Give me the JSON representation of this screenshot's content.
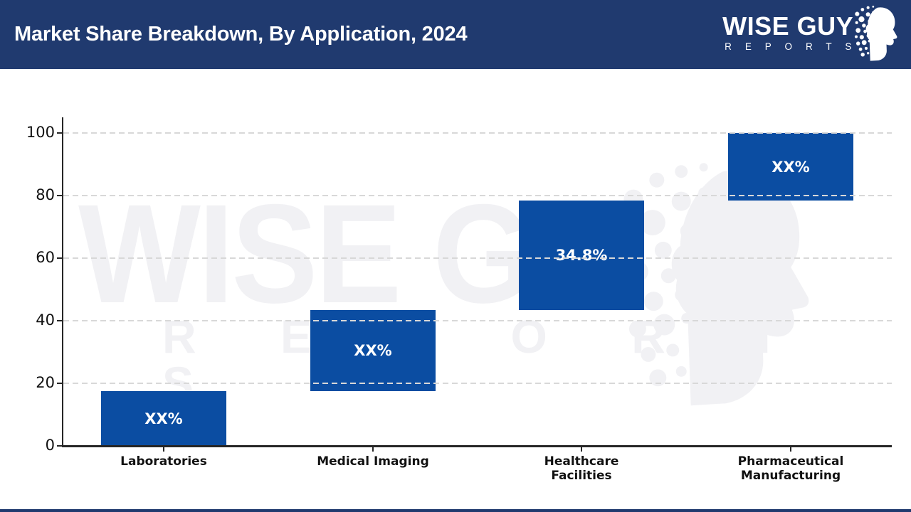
{
  "header": {
    "title": "Market Share Breakdown, By Application, 2024",
    "bg_color": "#203a6f",
    "logo": {
      "brand": "WISE GUY",
      "reports": "R E P O R T S",
      "mark_icon": "dotted-face-profile"
    }
  },
  "watermark": {
    "brand": "WISE GU",
    "reports": "R E P O R T S",
    "mark_icon": "dotted-face-profile",
    "color": "#f1f1f4"
  },
  "chart_data": {
    "type": "bar",
    "subtype": "floating-waterfall",
    "title": "Market Share Breakdown, By Application, 2024",
    "categories": [
      "Laboratories",
      "Medical Imaging",
      "Healthcare Facilities",
      "Pharmaceutical Manufacturing"
    ],
    "bars": [
      {
        "category": "Laboratories",
        "start": 0,
        "end": 17.5,
        "value": 17.5,
        "label": "XX%"
      },
      {
        "category": "Medical Imaging",
        "start": 17.5,
        "end": 43.5,
        "value": 26.0,
        "label": "XX%"
      },
      {
        "category": "Healthcare Facilities",
        "start": 43.5,
        "end": 78.3,
        "value": 34.8,
        "label": "34.8%"
      },
      {
        "category": "Pharmaceutical Manufacturing",
        "start": 78.3,
        "end": 100,
        "value": 21.7,
        "label": "XX%"
      }
    ],
    "yticks": [
      0,
      20,
      40,
      60,
      80,
      100
    ],
    "ylim": [
      0,
      105
    ],
    "xlabel": "",
    "ylabel": "",
    "grid": true,
    "grid_style": "dashed",
    "grid_on_top_of_bars": true,
    "legend": "none",
    "bar_color": "#0b4da2",
    "bar_label_color": "#ffffff",
    "axis_color": "#262626",
    "tick_label_color": "#111111"
  },
  "footer": {
    "bar_color": "#203a6f"
  }
}
